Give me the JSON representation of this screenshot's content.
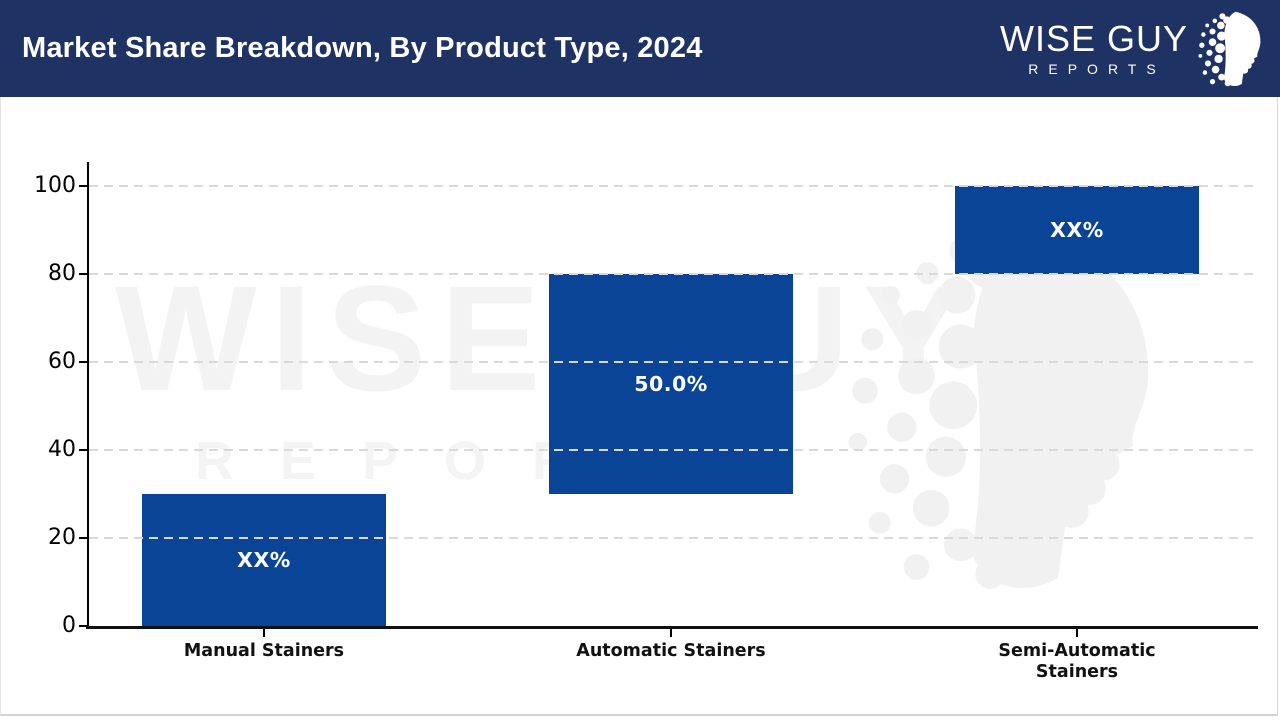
{
  "header": {
    "title": "Market Share Breakdown, By Product Type, 2024",
    "logo": {
      "brand": "WISE GUY",
      "sub": "REPORTS"
    },
    "bg_color": "#1e3263"
  },
  "watermark": {
    "brand": "WISE GUY",
    "sub": "REPORTS"
  },
  "chart_data": {
    "type": "bar",
    "subtype": "floating-waterfall",
    "title": "Market Share Breakdown, By Product Type, 2024",
    "categories": [
      "Manual Stainers",
      "Automatic Stainers",
      "Semi-Automatic Stainers"
    ],
    "category_lines": [
      [
        "Manual Stainers"
      ],
      [
        "Automatic Stainers"
      ],
      [
        "Semi-Automatic",
        "Stainers"
      ]
    ],
    "segments": [
      {
        "start": 0,
        "end": 30
      },
      {
        "start": 30,
        "end": 80
      },
      {
        "start": 80,
        "end": 100
      }
    ],
    "values": [
      30,
      50,
      20
    ],
    "bar_labels": [
      "XX%",
      "50.0%",
      "XX%"
    ],
    "yticks": [
      0,
      20,
      40,
      60,
      80,
      100
    ],
    "ylim": [
      0,
      105
    ],
    "xlabel": "",
    "ylabel": "",
    "grid": true,
    "gridline_style": "dashed",
    "legend": false,
    "bar_color": "#0a4496",
    "label_color": "#ffffff",
    "axis_color": "#000000",
    "grid_color": "#d9d9d9"
  }
}
